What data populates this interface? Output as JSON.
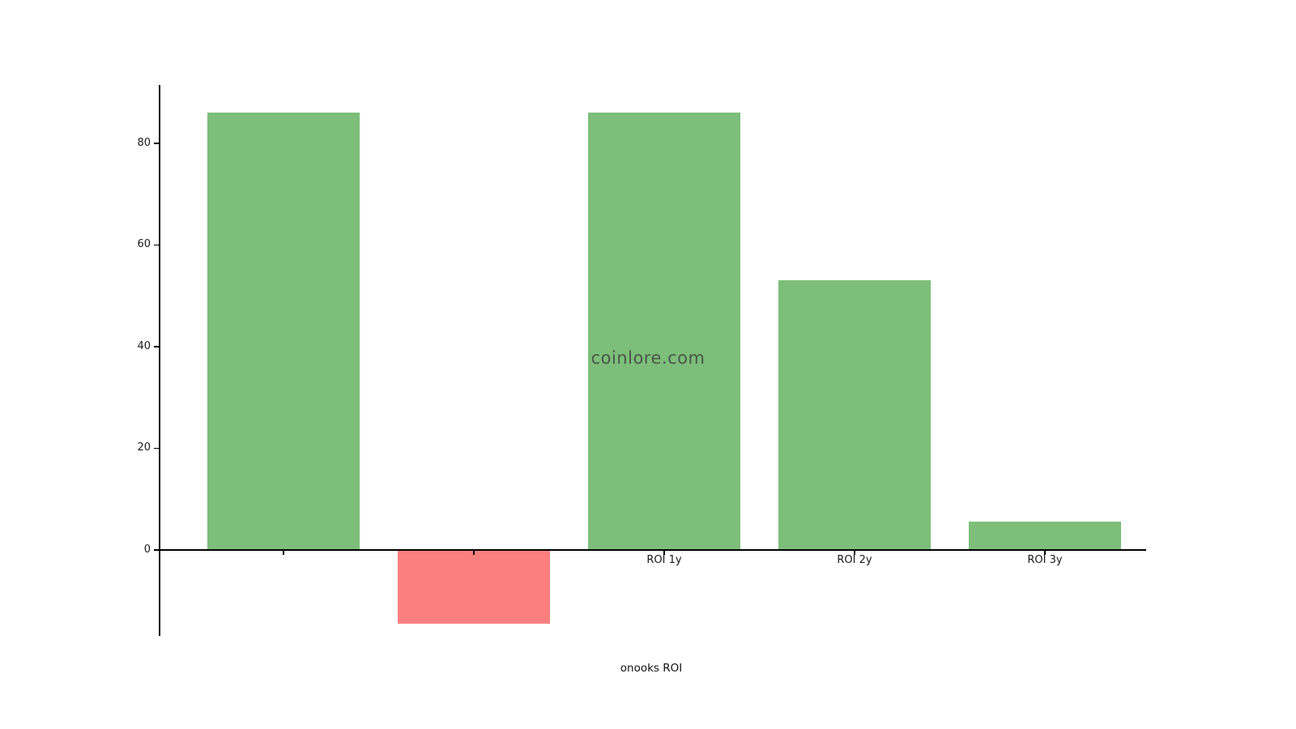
{
  "watermark": "coinlore.com",
  "chart_data": {
    "type": "bar",
    "title": "",
    "xlabel": "onooks ROI",
    "ylabel": "",
    "categories": [
      "",
      "",
      "ROI 1y",
      "ROI 2y",
      "ROI 3y"
    ],
    "values": [
      86,
      -14.3,
      86,
      53,
      5.5
    ],
    "bar_colors": [
      "#7cbe7a",
      "#fc7f7f",
      "#7cbe7a",
      "#7cbe7a",
      "#7cbe7a"
    ],
    "positive_color": "#7cbe7a",
    "negative_color": "#fc7f7f",
    "yticks": [
      0,
      20,
      40,
      60,
      80
    ],
    "ylim": [
      -17,
      91.5
    ],
    "grid": false,
    "legend": "none",
    "axis_color": "#000000"
  }
}
